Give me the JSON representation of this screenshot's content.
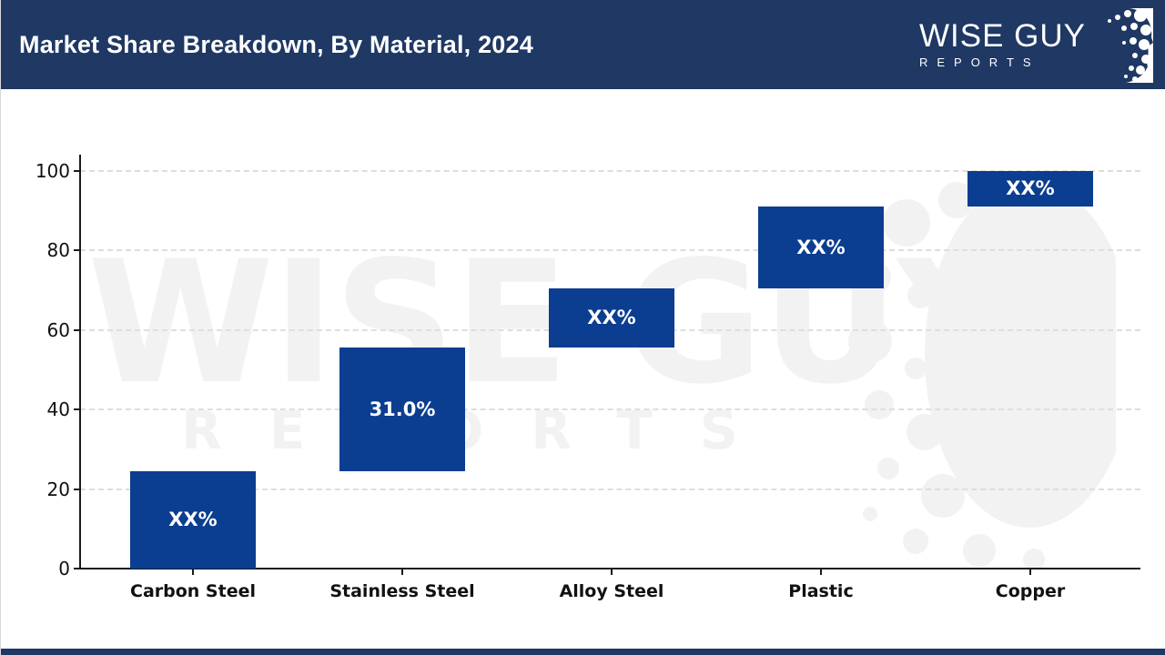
{
  "header": {
    "title": "Market Share Breakdown, By Material, 2024",
    "background_color": "#1f3864",
    "logo": {
      "line1": "WISE GUY",
      "line2": "REPORTS"
    }
  },
  "watermark": {
    "line1": "WISE GUY",
    "line2": "REPORTS"
  },
  "chart_data": {
    "type": "bar",
    "subtype": "waterfall-floating-bars",
    "title": "Market Share Breakdown, By Material, 2024",
    "xlabel": "",
    "ylabel": "",
    "ylim": [
      0,
      100
    ],
    "y_ticks": [
      0,
      20,
      40,
      60,
      80,
      100
    ],
    "grid": "horizontal-dashed",
    "bar_color": "#0b3d91",
    "bar_label_color": "#ffffff",
    "categories": [
      "Carbon Steel",
      "Stainless Steel",
      "Alloy Steel",
      "Plastic",
      "Copper"
    ],
    "segments": [
      {
        "category": "Carbon Steel",
        "start": 0,
        "end": 24.5,
        "value_label": "XX%"
      },
      {
        "category": "Stainless Steel",
        "start": 24.5,
        "end": 55.5,
        "value_label": "31.0%"
      },
      {
        "category": "Alloy Steel",
        "start": 55.5,
        "end": 70.5,
        "value_label": "XX%"
      },
      {
        "category": "Plastic",
        "start": 70.5,
        "end": 91,
        "value_label": "XX%"
      },
      {
        "category": "Copper",
        "start": 91,
        "end": 100,
        "value_label": "XX%"
      }
    ]
  }
}
